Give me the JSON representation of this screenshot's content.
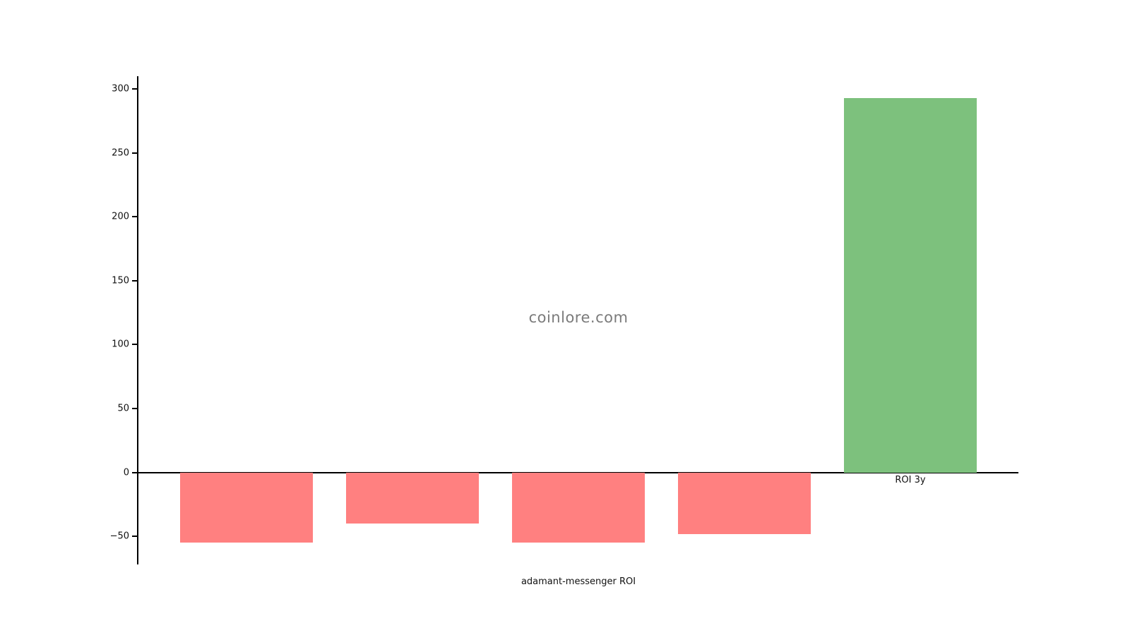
{
  "page": {
    "background": "#ffffff"
  },
  "watermark": {
    "text": "coinlore.com",
    "color": "#7b7b7b"
  },
  "chart_data": {
    "type": "bar",
    "title": "",
    "xlabel": "adamant-messenger ROI",
    "ylabel": "",
    "categories": [
      "",
      "",
      "",
      "",
      "ROI 3y"
    ],
    "values": [
      -55,
      -40,
      -55,
      -48,
      293
    ],
    "bar_colors": [
      "#ff8080",
      "#ff8080",
      "#ff8080",
      "#ff8080",
      "#7dc17d"
    ],
    "negative_color": "#ff8080",
    "positive_color": "#7dc17d",
    "axis_color": "#000000",
    "ylim": [
      -72,
      310
    ],
    "yticks": [
      -50,
      0,
      50,
      100,
      150,
      200,
      250,
      300
    ],
    "ytick_labels": [
      "−50",
      "0",
      "50",
      "100",
      "150",
      "200",
      "250",
      "300"
    ],
    "grid": false,
    "legend": null,
    "x_axis_position": "zero"
  }
}
